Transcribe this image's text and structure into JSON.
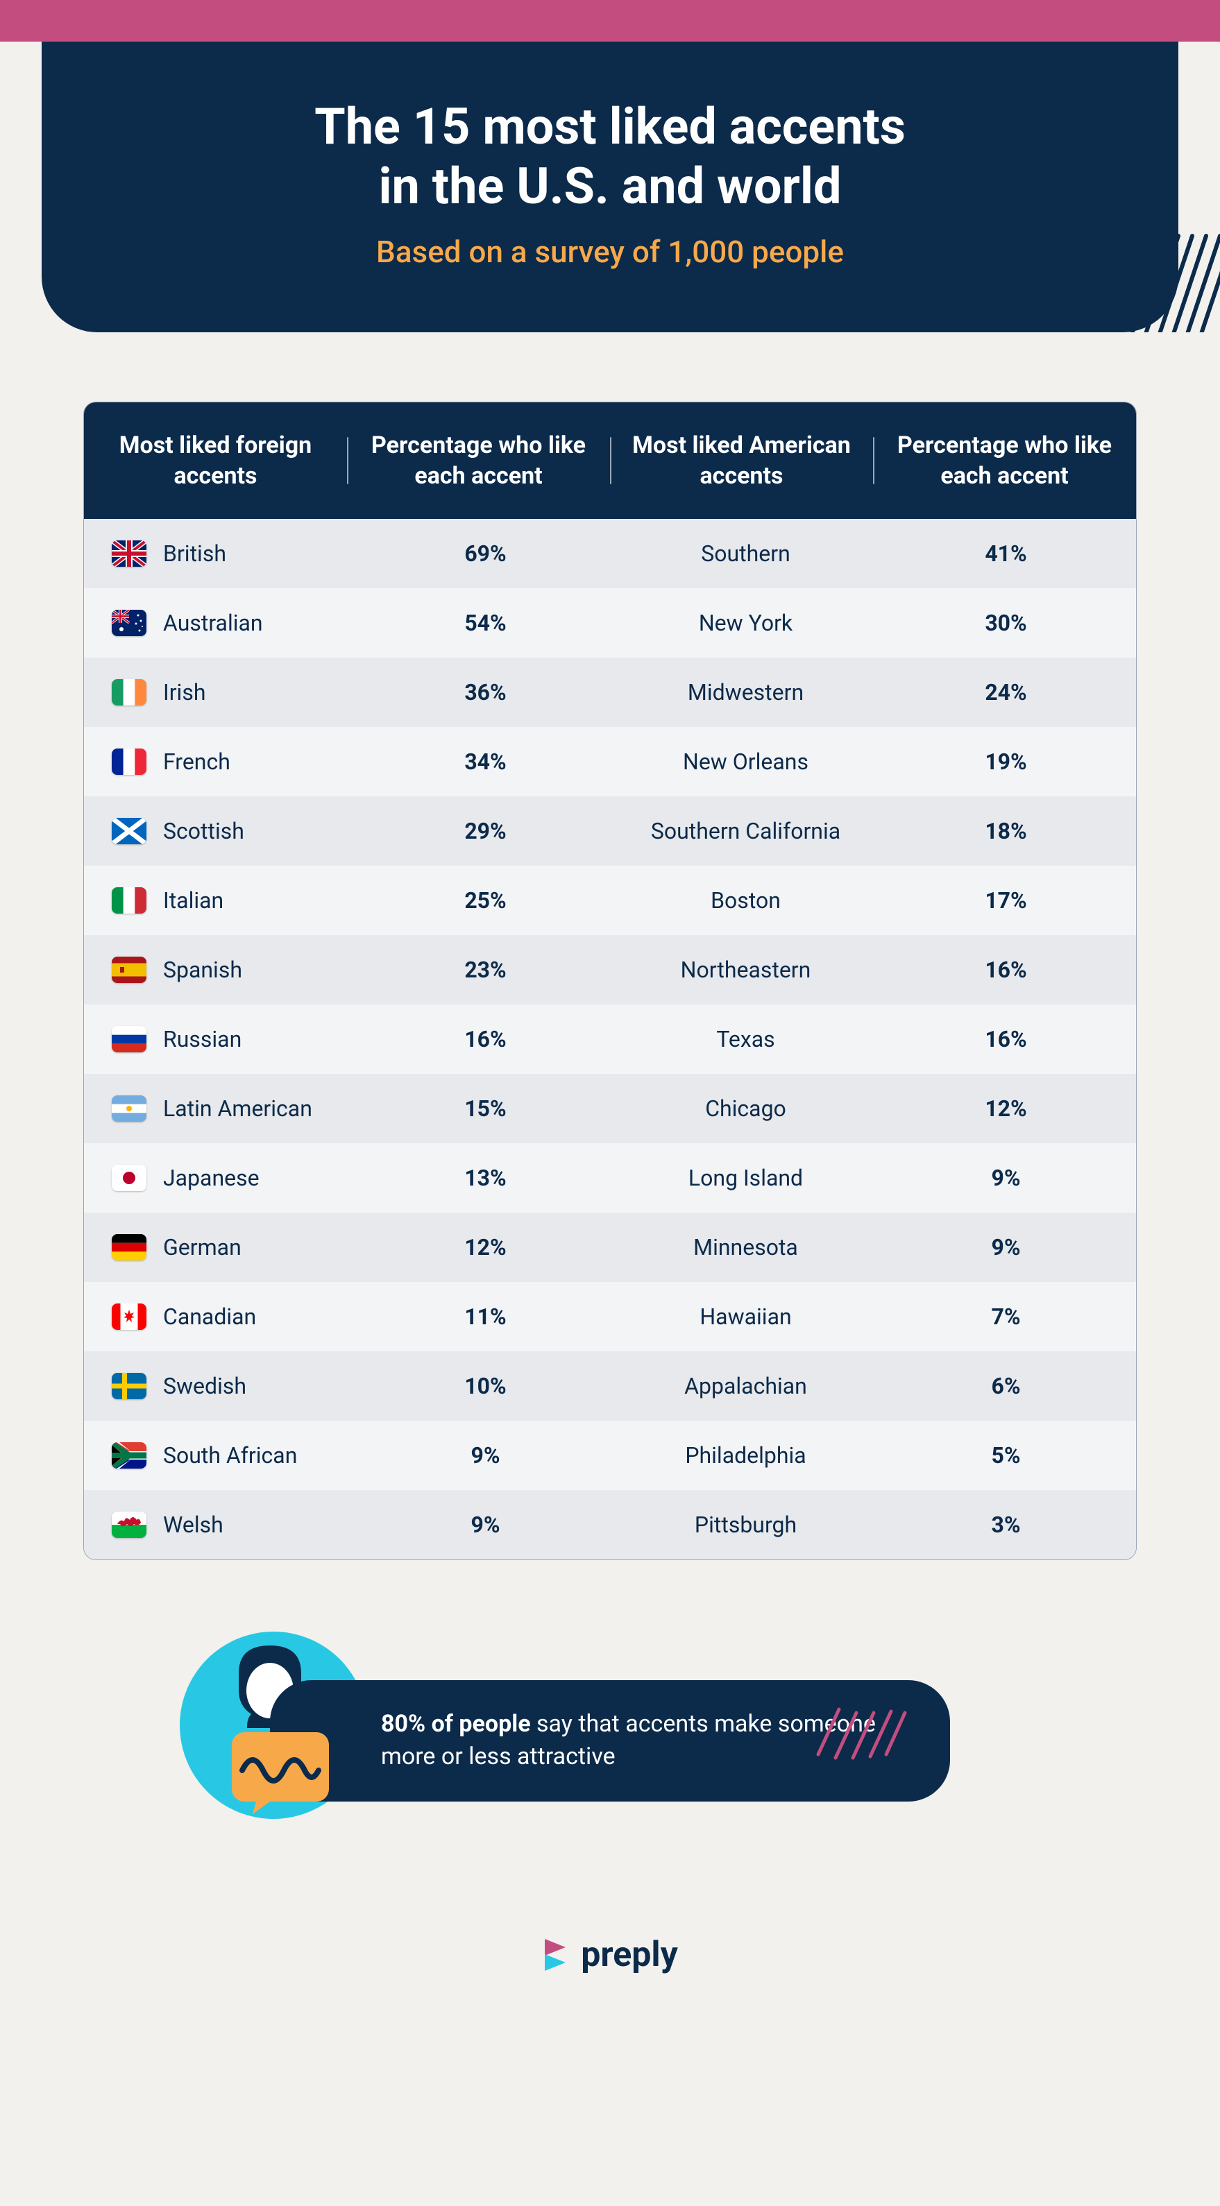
{
  "colors": {
    "topbar": "#c34d7f",
    "header_bg": "#0c2a4a",
    "page_bg": "#f2f1ee",
    "title_color": "#ffffff",
    "subtitle_color": "#f7a94a",
    "row_odd": "#e7e9ec",
    "row_even": "#f3f4f6",
    "text": "#0c2a4a",
    "callout_circle": "#28c8e4",
    "speech_box": "#f7a94a",
    "wave_line": "#0c2a4a",
    "scratch": "#c34d7f",
    "logo_tri1": "#c34d7f",
    "logo_tri2": "#28c8e4"
  },
  "header": {
    "title_line1": "The 15 most liked accents",
    "title_line2": "in the U.S. and world",
    "subtitle": "Based on a survey of 1,000 people"
  },
  "table": {
    "columns": [
      "Most liked foreign accents",
      "Percentage who like each accent",
      "Most liked American accents",
      "Percentage who like each accent"
    ],
    "rows": [
      {
        "foreign": "British",
        "fpct": "69%",
        "american": "Southern",
        "apct": "41%",
        "flag": "gb"
      },
      {
        "foreign": "Australian",
        "fpct": "54%",
        "american": "New York",
        "apct": "30%",
        "flag": "au"
      },
      {
        "foreign": "Irish",
        "fpct": "36%",
        "american": "Midwestern",
        "apct": "24%",
        "flag": "ie"
      },
      {
        "foreign": "French",
        "fpct": "34%",
        "american": "New Orleans",
        "apct": "19%",
        "flag": "fr"
      },
      {
        "foreign": "Scottish",
        "fpct": "29%",
        "american": "Southern California",
        "apct": "18%",
        "flag": "sc"
      },
      {
        "foreign": "Italian",
        "fpct": "25%",
        "american": "Boston",
        "apct": "17%",
        "flag": "it"
      },
      {
        "foreign": "Spanish",
        "fpct": "23%",
        "american": "Northeastern",
        "apct": "16%",
        "flag": "es"
      },
      {
        "foreign": "Russian",
        "fpct": "16%",
        "american": "Texas",
        "apct": "16%",
        "flag": "ru"
      },
      {
        "foreign": "Latin American",
        "fpct": "15%",
        "american": "Chicago",
        "apct": "12%",
        "flag": "ar"
      },
      {
        "foreign": "Japanese",
        "fpct": "13%",
        "american": "Long Island",
        "apct": "9%",
        "flag": "jp"
      },
      {
        "foreign": "German",
        "fpct": "12%",
        "american": "Minnesota",
        "apct": "9%",
        "flag": "de"
      },
      {
        "foreign": "Canadian",
        "fpct": "11%",
        "american": "Hawaiian",
        "apct": "7%",
        "flag": "ca"
      },
      {
        "foreign": "Swedish",
        "fpct": "10%",
        "american": "Appalachian",
        "apct": "6%",
        "flag": "se"
      },
      {
        "foreign": "South African",
        "fpct": "9%",
        "american": "Philadelphia",
        "apct": "5%",
        "flag": "za"
      },
      {
        "foreign": "Welsh",
        "fpct": "9%",
        "american": "Pittsburgh",
        "apct": "3%",
        "flag": "wa"
      }
    ]
  },
  "callout": {
    "bold": "80% of people",
    "rest": " say that accents make someone more or less attractive"
  },
  "footer": {
    "brand": "preply"
  }
}
